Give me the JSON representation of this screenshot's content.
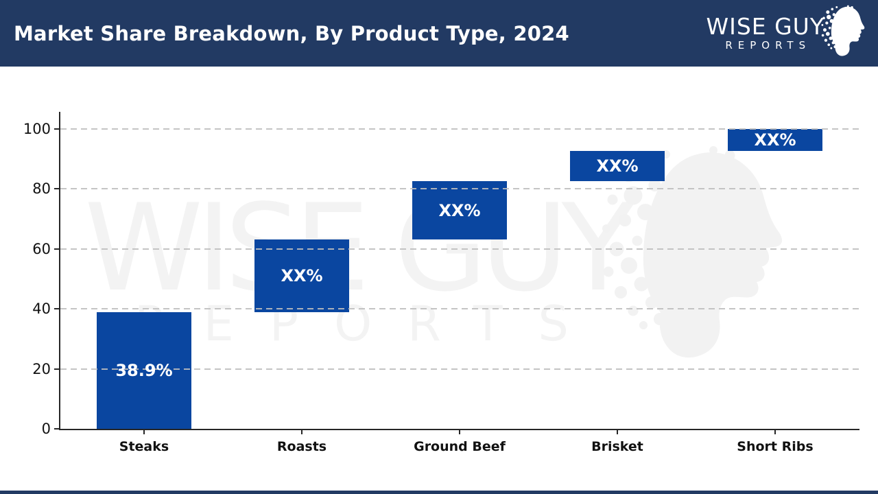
{
  "header": {
    "title": "Market Share Breakdown, By Product Type, 2024",
    "logo": {
      "line1": "WISE GUY",
      "line2": "REPORTS"
    }
  },
  "watermark": {
    "line1": "WISE GUY",
    "line2": "REPORTS"
  },
  "chart_data": {
    "type": "waterfall",
    "title": "Market Share Breakdown, By Product Type, 2024",
    "categories": [
      "Steaks",
      "Roasts",
      "Ground Beef",
      "Brisket",
      "Short Ribs"
    ],
    "segments": [
      {
        "category": "Steaks",
        "start": 0,
        "end": 38.9,
        "label": "38.9%"
      },
      {
        "category": "Roasts",
        "start": 38.9,
        "end": 63.1,
        "label": "XX%"
      },
      {
        "category": "Ground Beef",
        "start": 63.1,
        "end": 82.6,
        "label": "XX%"
      },
      {
        "category": "Brisket",
        "start": 82.6,
        "end": 92.6,
        "label": "XX%"
      },
      {
        "category": "Short Ribs",
        "start": 92.6,
        "end": 100,
        "label": "XX%"
      }
    ],
    "xlabel": "",
    "ylabel": "",
    "y_ticks": [
      0,
      20,
      40,
      60,
      80,
      100
    ],
    "ylim": [
      0,
      106
    ],
    "grid": "horizontal-dashed",
    "legend": "none",
    "colors": {
      "bar": "#0a46a0",
      "value_label": "#ffffff",
      "header_bg": "#223a63",
      "watermark": "#f3f3f3",
      "grid_line": "#bebebe",
      "axis": "#262626"
    }
  }
}
